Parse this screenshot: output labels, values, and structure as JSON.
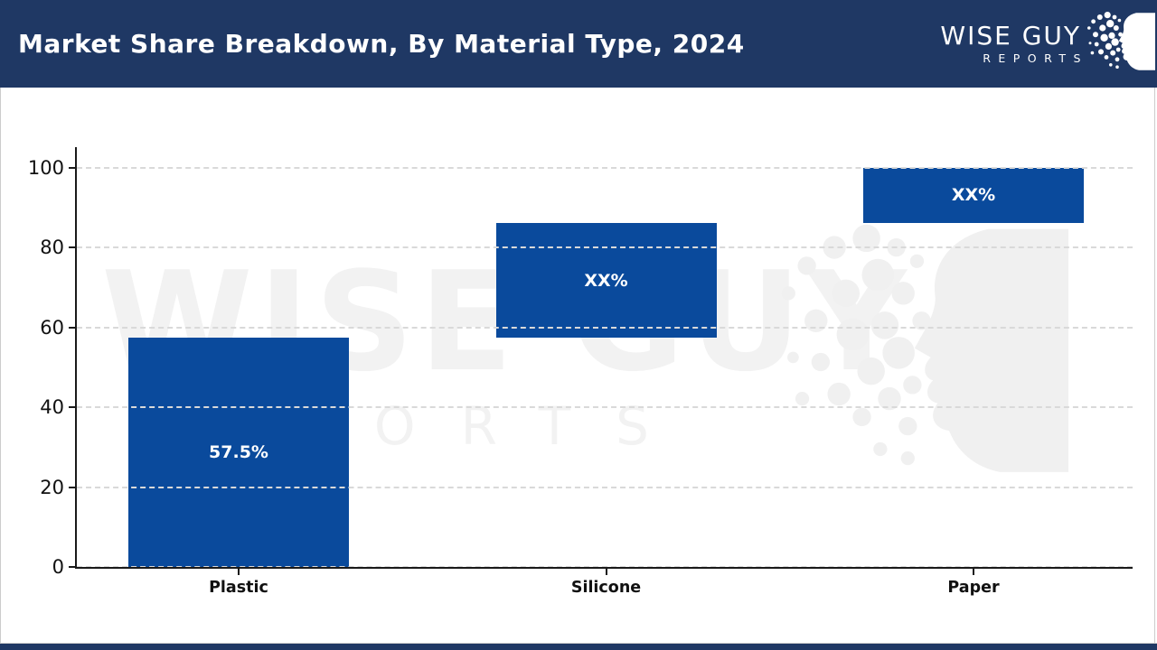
{
  "header": {
    "title": "Market Share Breakdown, By Material Type, 2024",
    "bg_color": "#1f3864",
    "logo": {
      "line1": "WISE GUY",
      "line2": "REPORTS"
    }
  },
  "watermark": {
    "line1": "WISE GUY",
    "line2": "REPORTS"
  },
  "chart_data": {
    "type": "bar",
    "subtype": "waterfall",
    "title": "Market Share Breakdown, By Material Type, 2024",
    "categories": [
      "Plastic",
      "Silicone",
      "Paper"
    ],
    "series": [
      {
        "name": "Market Share (%)",
        "segments": [
          {
            "category": "Plastic",
            "start": 0,
            "end": 57.5,
            "label": "57.5%"
          },
          {
            "category": "Silicone",
            "start": 57.5,
            "end": 86,
            "label": "XX%"
          },
          {
            "category": "Paper",
            "start": 86,
            "end": 100,
            "label": "XX%"
          }
        ]
      }
    ],
    "xlabel": "",
    "ylabel": "",
    "ylim": [
      0,
      100
    ],
    "yticks": [
      0,
      20,
      40,
      60,
      80,
      100
    ],
    "grid": "horizontal-dashed",
    "legend": "none",
    "bar_color": "#0a4a9c",
    "bar_label_color": "#ffffff",
    "axis_color": "#1a1a1a",
    "gridline_color": "#d9d9d9"
  }
}
